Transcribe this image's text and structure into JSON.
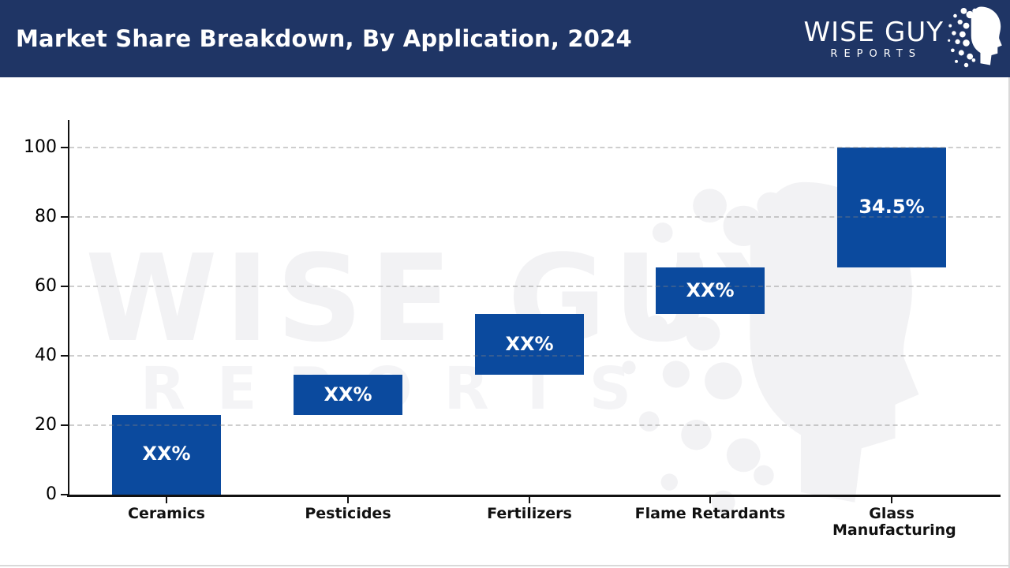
{
  "header": {
    "title": "Market Share Breakdown, By Application, 2024",
    "background_color": "#1f3565",
    "logo": {
      "wordmark": "WISE GUY",
      "subtext": "REPORTS",
      "icon": "dotted-head-profile-icon"
    }
  },
  "watermark": {
    "line1": "WISE GUY",
    "line2": "REPORTS",
    "icon": "dotted-head-profile-watermark"
  },
  "chart_data": {
    "type": "bar",
    "subtype": "floating-waterfall",
    "title": "Market Share Breakdown, By Application, 2024",
    "categories": [
      "Ceramics",
      "Pesticides",
      "Fertilizers",
      "Flame Retardants",
      "Glass Manufacturing"
    ],
    "bars": [
      {
        "category": "Ceramics",
        "start": 0,
        "end": 23,
        "label": "XX%"
      },
      {
        "category": "Pesticides",
        "start": 23,
        "end": 34.5,
        "label": "XX%"
      },
      {
        "category": "Fertilizers",
        "start": 34.5,
        "end": 52,
        "label": "XX%"
      },
      {
        "category": "Flame Retardants",
        "start": 52,
        "end": 65.5,
        "label": "XX%"
      },
      {
        "category": "Glass Manufacturing",
        "start": 65.5,
        "end": 100,
        "label": "34.5%"
      }
    ],
    "xlabel": "",
    "ylabel": "",
    "ylim": [
      0,
      100
    ],
    "yticks": [
      0,
      20,
      40,
      60,
      80,
      100
    ],
    "grid": "horizontal dashed, drawn above bars",
    "legend": "none",
    "bar_color": "#0b4a9e",
    "bar_label_color": "#ffffff",
    "axis_color": "#111111"
  }
}
